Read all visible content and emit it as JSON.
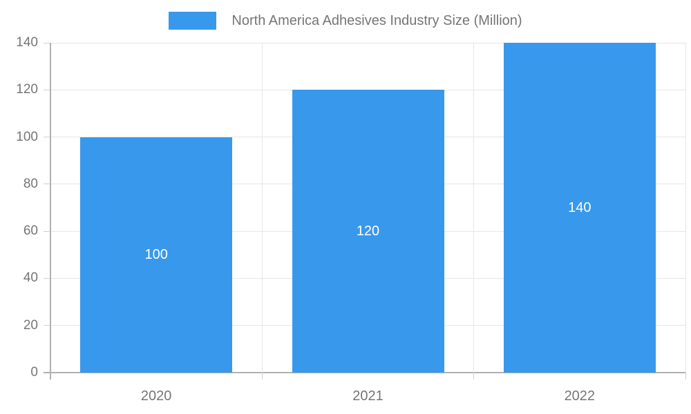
{
  "legend": {
    "label": "North America Adhesives Industry Size (Million)"
  },
  "colors": {
    "bar": "#3898ec",
    "axis_text": "#757575",
    "grid": "#e6e6e6",
    "axis_line": "#b0b0b0",
    "tick": "#cfcfcf",
    "bar_label": "#ffffff",
    "background": "#ffffff"
  },
  "chart_data": {
    "type": "bar",
    "title": "North America Adhesives Industry Size (Million)",
    "categories": [
      "2020",
      "2021",
      "2022"
    ],
    "values": [
      100,
      120,
      140
    ],
    "data_labels": [
      "100",
      "120",
      "140"
    ],
    "series": [
      {
        "name": "North America Adhesives Industry Size (Million)",
        "values": [
          100,
          120,
          140
        ]
      }
    ],
    "xlabel": "",
    "ylabel": "",
    "ylim": [
      0,
      140
    ],
    "yticks": [
      0,
      20,
      40,
      60,
      80,
      100,
      120,
      140
    ],
    "grid": true,
    "legend_position": "top",
    "bar_label_position": "center"
  }
}
